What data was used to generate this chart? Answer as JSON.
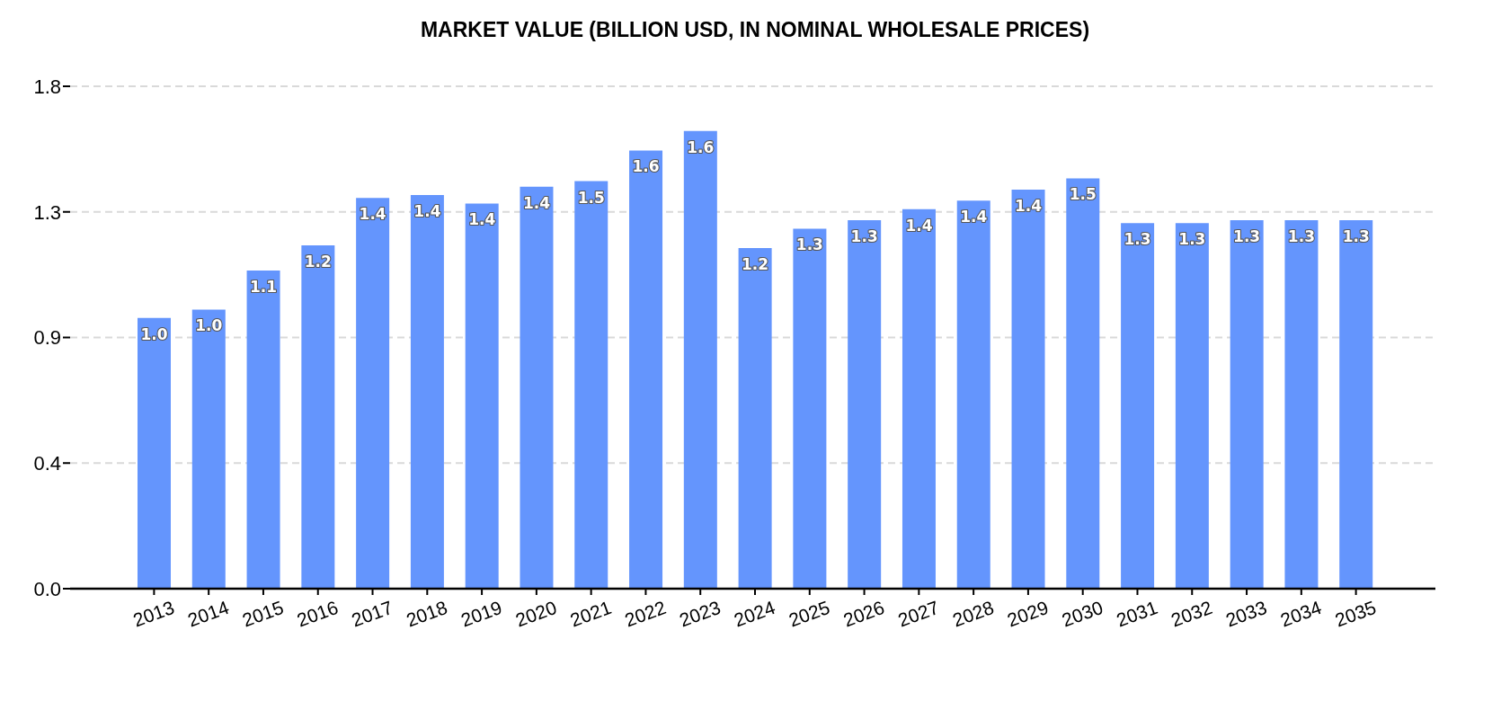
{
  "chart_data": {
    "type": "bar",
    "title": "MARKET VALUE (BILLION USD, IN NOMINAL WHOLESALE PRICES)",
    "categories": [
      "2013",
      "2014",
      "2015",
      "2016",
      "2017",
      "2018",
      "2019",
      "2020",
      "2021",
      "2022",
      "2023",
      "2024",
      "2025",
      "2026",
      "2027",
      "2028",
      "2029",
      "2030",
      "2031",
      "2032",
      "2033",
      "2034",
      "2035"
    ],
    "values": [
      0.97,
      1.0,
      1.14,
      1.23,
      1.4,
      1.41,
      1.38,
      1.44,
      1.46,
      1.57,
      1.64,
      1.22,
      1.29,
      1.32,
      1.36,
      1.39,
      1.43,
      1.47,
      1.31,
      1.31,
      1.32,
      1.32,
      1.32
    ],
    "value_labels": [
      "1.0",
      "1.0",
      "1.1",
      "1.2",
      "1.4",
      "1.4",
      "1.4",
      "1.4",
      "1.5",
      "1.6",
      "1.6",
      "1.2",
      "1.3",
      "1.3",
      "1.4",
      "1.4",
      "1.4",
      "1.5",
      "1.3",
      "1.3",
      "1.3",
      "1.3",
      "1.3"
    ],
    "color": "#6495fd",
    "ylim": [
      0,
      1.8
    ],
    "yticks": [
      {
        "value": 0,
        "label": "0.0"
      },
      {
        "value": 0.45,
        "label": "0.4"
      },
      0.9,
      {
        "value": 1.35,
        "label": "1.3"
      },
      1.8
    ],
    "grid": "y"
  }
}
